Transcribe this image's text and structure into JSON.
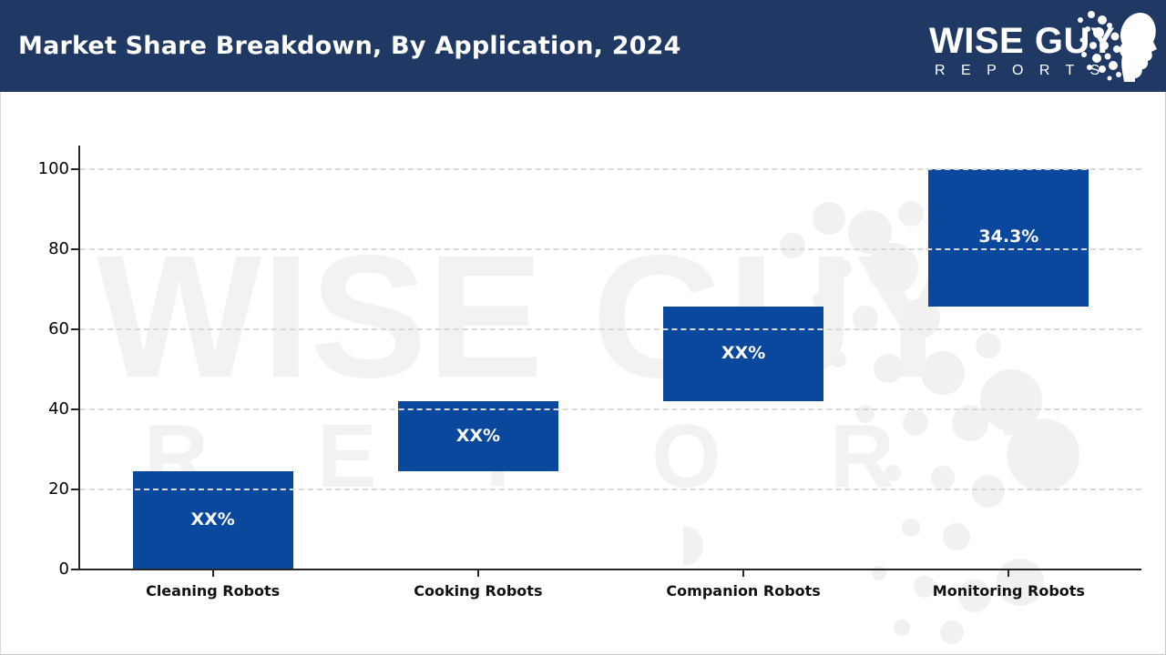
{
  "header": {
    "title": "Market Share Breakdown, By Application, 2024",
    "logo": {
      "line1": "WISE GUY",
      "line2": "R E P O R T S"
    }
  },
  "watermark": {
    "line1": "WISE GUY",
    "line2": "R E P O R T S"
  },
  "chart_data": {
    "type": "bar",
    "variant": "waterfall",
    "title": "Market Share Breakdown, By Application, 2024",
    "categories": [
      "Cleaning Robots",
      "Cooking Robots",
      "Companion Robots",
      "Monitoring Robots"
    ],
    "series": [
      {
        "name": "Market share (%)",
        "segments": [
          {
            "category": "Cleaning Robots",
            "start": 0,
            "end": 24.5,
            "label": "XX%"
          },
          {
            "category": "Cooking Robots",
            "start": 24.5,
            "end": 42.0,
            "label": "XX%"
          },
          {
            "category": "Companion Robots",
            "start": 42.0,
            "end": 65.7,
            "label": "XX%"
          },
          {
            "category": "Monitoring Robots",
            "start": 65.7,
            "end": 100,
            "label": "34.3%"
          }
        ]
      }
    ],
    "ylim": [
      0,
      100
    ],
    "yticks": [
      0,
      20,
      40,
      60,
      80,
      100
    ],
    "grid": "horizontal-dashed",
    "legend": "none",
    "colors": {
      "bar": "#0a489e",
      "grid": "#d9d9d9",
      "axis": "#262626",
      "bar_label": "#ffffff",
      "header_bg": "#203864"
    }
  }
}
